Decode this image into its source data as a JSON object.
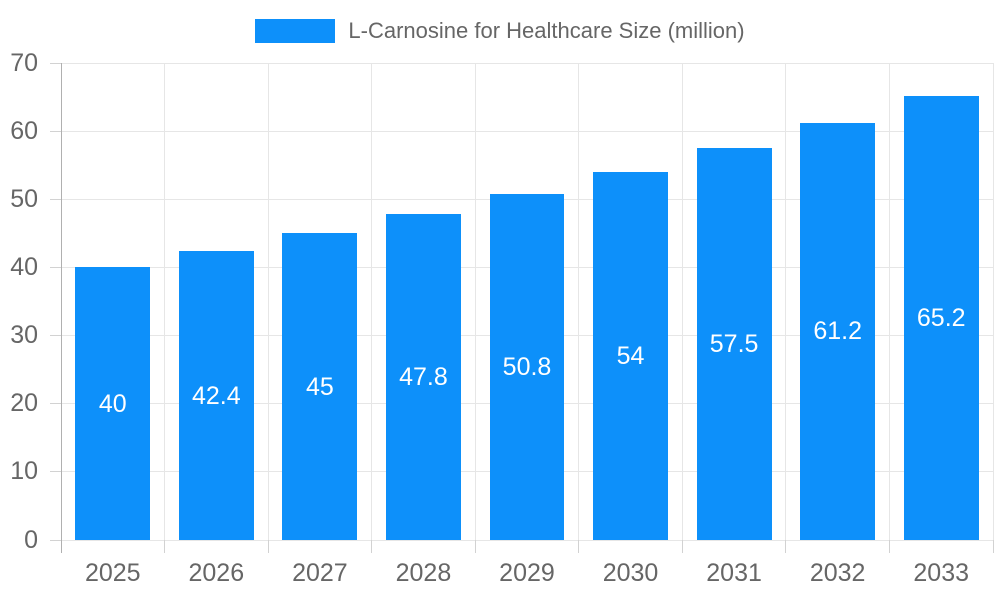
{
  "legend": {
    "label": "L-Carnosine for Healthcare Size (million)"
  },
  "chart_data": {
    "type": "bar",
    "title": "L-Carnosine for Healthcare Size (million)",
    "series_name": "L-Carnosine for Healthcare Size (million)",
    "categories": [
      "2025",
      "2026",
      "2027",
      "2028",
      "2029",
      "2030",
      "2031",
      "2032",
      "2033"
    ],
    "values": [
      40,
      42.4,
      45,
      47.8,
      50.8,
      54,
      57.5,
      61.2,
      65.2
    ],
    "value_labels": [
      "40",
      "42.4",
      "45",
      "47.8",
      "50.8",
      "54",
      "57.5",
      "61.2",
      "65.2"
    ],
    "xlabel": "",
    "ylabel": "",
    "ylim": [
      0,
      70
    ],
    "yticks": [
      0,
      10,
      20,
      30,
      40,
      50,
      60,
      70
    ],
    "grid": true,
    "legend_position": "top-center",
    "value_label_position": "inside-middle"
  },
  "colors": {
    "bar": "#0d90fa",
    "grid": "#e6e6e6",
    "axis_line": "#b0b0b0",
    "tick": "#d2d2d2",
    "text": "#666666",
    "value_label": "#ffffff",
    "background": "#ffffff"
  }
}
